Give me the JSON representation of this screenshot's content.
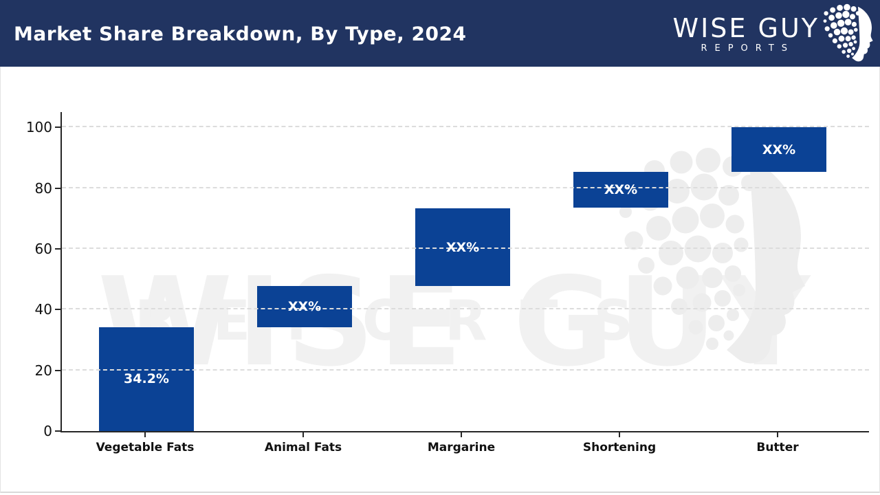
{
  "header": {
    "title": "Market Share Breakdown, By Type, 2024",
    "logo": {
      "line1": "WISE GUY",
      "line2": "REPORTS"
    }
  },
  "watermark": {
    "line1": "WISE GUY",
    "line2": "REPORTS"
  },
  "colors": {
    "header_bg": "#213461",
    "bar": "#0b4295",
    "bar_label": "#ffffff",
    "axis": "#262626",
    "grid": "#dcdcdc",
    "tick_text": "#111111",
    "watermark": "#f1f1f1",
    "frame": "#d9d9d9"
  },
  "chart_data": {
    "type": "bar",
    "variant": "waterfall",
    "title": "Market Share Breakdown, By Type, 2024",
    "categories": [
      "Vegetable Fats",
      "Animal Fats",
      "Margarine",
      "Shortening",
      "Butter"
    ],
    "segments": [
      {
        "category": "Vegetable Fats",
        "start": 0,
        "end": 34.2,
        "label": "34.2%"
      },
      {
        "category": "Animal Fats",
        "start": 34.3,
        "end": 47.7,
        "label": "XX%"
      },
      {
        "category": "Margarine",
        "start": 47.7,
        "end": 73.4,
        "label": "XX%"
      },
      {
        "category": "Shortening",
        "start": 73.5,
        "end": 85.3,
        "label": "XX%"
      },
      {
        "category": "Butter",
        "start": 85.3,
        "end": 100,
        "label": "XX%"
      }
    ],
    "xlabel": "",
    "ylabel": "",
    "ylim": [
      0,
      105
    ],
    "yticks": [
      0,
      20,
      40,
      60,
      80,
      100
    ],
    "grid": "horizontal-dashed",
    "legend": "none"
  }
}
